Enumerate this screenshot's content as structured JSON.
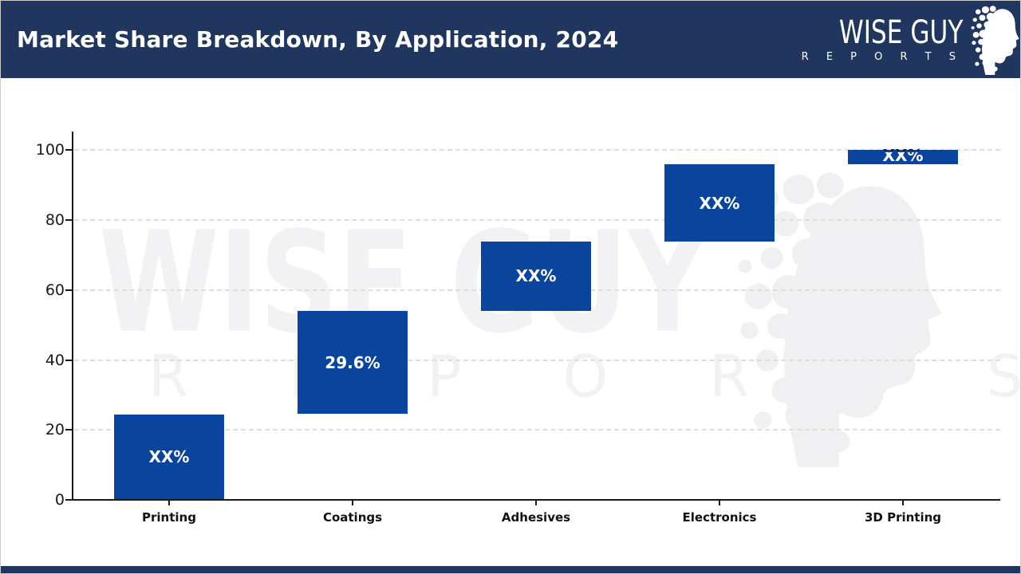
{
  "header": {
    "title": "Market Share Breakdown, By Application, 2024",
    "background": "#21365f",
    "logo": {
      "line1": "WISE GUY",
      "line2": "R E P O R T S"
    }
  },
  "watermark": {
    "line1": "WISE GUY",
    "line2": "R E P O R T S"
  },
  "footer": {
    "background": "#21365f"
  },
  "chart_data": {
    "type": "bar",
    "subtype": "waterfall",
    "title": "Market Share Breakdown, By Application, 2024",
    "xlabel": "",
    "ylabel": "",
    "categories": [
      "Printing",
      "Coatings",
      "Adhesives",
      "Electronics",
      "3D Printing"
    ],
    "segments": [
      {
        "category": "Printing",
        "start": 0,
        "end": 24.5,
        "label": "XX%",
        "two_tone": false
      },
      {
        "category": "Coatings",
        "start": 24.5,
        "end": 54.1,
        "label": "29.6%",
        "value": 29.6,
        "two_tone": false
      },
      {
        "category": "Adhesives",
        "start": 54.1,
        "end": 73.9,
        "label": "XX%",
        "two_tone": false
      },
      {
        "category": "Electronics",
        "start": 73.9,
        "end": 95.9,
        "label": "XX%",
        "two_tone": false
      },
      {
        "category": "3D Printing",
        "start": 95.9,
        "end": 100,
        "label": "XX%",
        "two_tone": true
      }
    ],
    "yticks": [
      0,
      20,
      40,
      60,
      80,
      100
    ],
    "ylim": [
      0,
      105.3
    ],
    "grid": "horizontal dashed",
    "legend": "none",
    "bar_color": "#0a449c",
    "bar_label_color": "#ffffff",
    "bar_label_dark_color": "#10203f",
    "grid_color": "#dedede",
    "axis_color": "#1a1a1a",
    "tick_label_color": "#1a1a1a"
  }
}
